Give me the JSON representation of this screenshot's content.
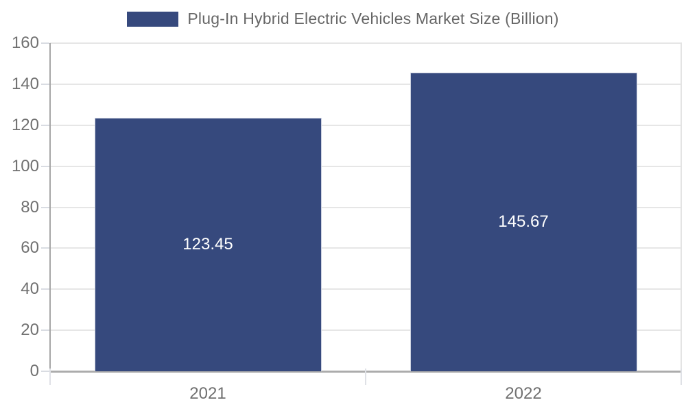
{
  "chart": {
    "legend_label": "Plug-In Hybrid Electric Vehicles Market Size (Billion)"
  },
  "chart_data": {
    "type": "bar",
    "title": "Plug-In Hybrid Electric Vehicles Market Size (Billion)",
    "categories": [
      "2021",
      "2022"
    ],
    "values": [
      123.45,
      145.67
    ],
    "data_labels": [
      "123.45",
      "145.67"
    ],
    "xlabel": "",
    "ylabel": "",
    "ylim": [
      0,
      160
    ],
    "ytick_step": 20,
    "ytick_labels": [
      "0",
      "20",
      "40",
      "60",
      "80",
      "100",
      "120",
      "140",
      "160"
    ],
    "grid": true,
    "legend_position": "top",
    "bar_color": "#36497D",
    "bar_label_color": "#ffffff",
    "grid_color": "#e6e6e6",
    "axis_color": "#a6a6a6",
    "tick_text_color": "#707070",
    "legend_text_color": "#666666"
  }
}
